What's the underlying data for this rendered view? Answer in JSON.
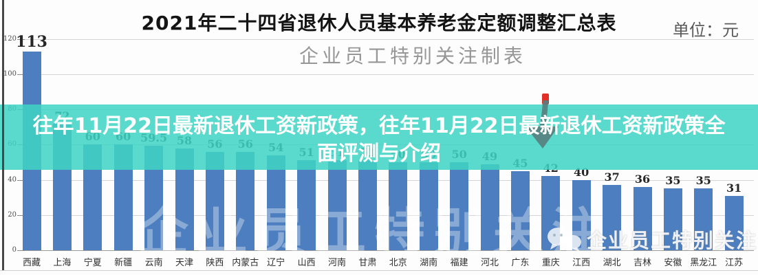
{
  "header": {
    "title": "2021年二十四省退休人员基本养老金定额调整汇总表",
    "unit_label": "单位：元",
    "subtitle": "企业员工特别关注制表"
  },
  "overlay_banner": {
    "line1": "往年11月22日最新退休工资新政策，往年11月22日最新退休工资新政策全",
    "line2": "面评测与介绍",
    "full_text": "往年11月22日最新退休工资新政策，往年11月22日最新退休工资新政策全面评测与介绍",
    "background_color": "#3fd4c4",
    "text_color": "#ffffff"
  },
  "annotations": {
    "pointer_arrow": {
      "shape": "down-arrow",
      "target_category": "重庆",
      "color": "#567e7e",
      "marker_color": "#e03028"
    }
  },
  "watermarks": {
    "corner_text": "企业员工特别关注",
    "corner_icon": "chat-bubbles-icon",
    "faint_text": "企业员工特别关注"
  },
  "chart_data": {
    "type": "bar",
    "title": "2021年二十四省退休人员基本养老金定额调整汇总表",
    "subtitle": "企业员工特别关注制表",
    "unit": "元",
    "xlabel": "",
    "ylabel": "",
    "categories": [
      "西藏",
      "上海",
      "宁夏",
      "新疆",
      "云南",
      "天津",
      "陕西",
      "内蒙古",
      "辽宁",
      "山西",
      "河南",
      "甘肃",
      "北京",
      "湖南",
      "福建",
      "河北",
      "广东",
      "重庆",
      "江西",
      "湖北",
      "吉林",
      "安徽",
      "黑龙江",
      "江苏"
    ],
    "values": [
      113,
      72,
      60,
      60,
      59.5,
      58,
      56,
      56,
      54,
      51,
      51,
      51,
      50,
      50,
      50,
      49,
      45,
      42,
      40,
      37,
      36,
      35,
      35,
      31
    ],
    "hidden_value_indices": [
      10,
      11,
      12,
      13
    ],
    "ylim": [
      0,
      120
    ],
    "yticks": [
      0,
      20,
      40,
      60,
      80,
      100,
      120
    ],
    "grid": true,
    "legend": false,
    "bar_color": "#4d7ebf"
  }
}
